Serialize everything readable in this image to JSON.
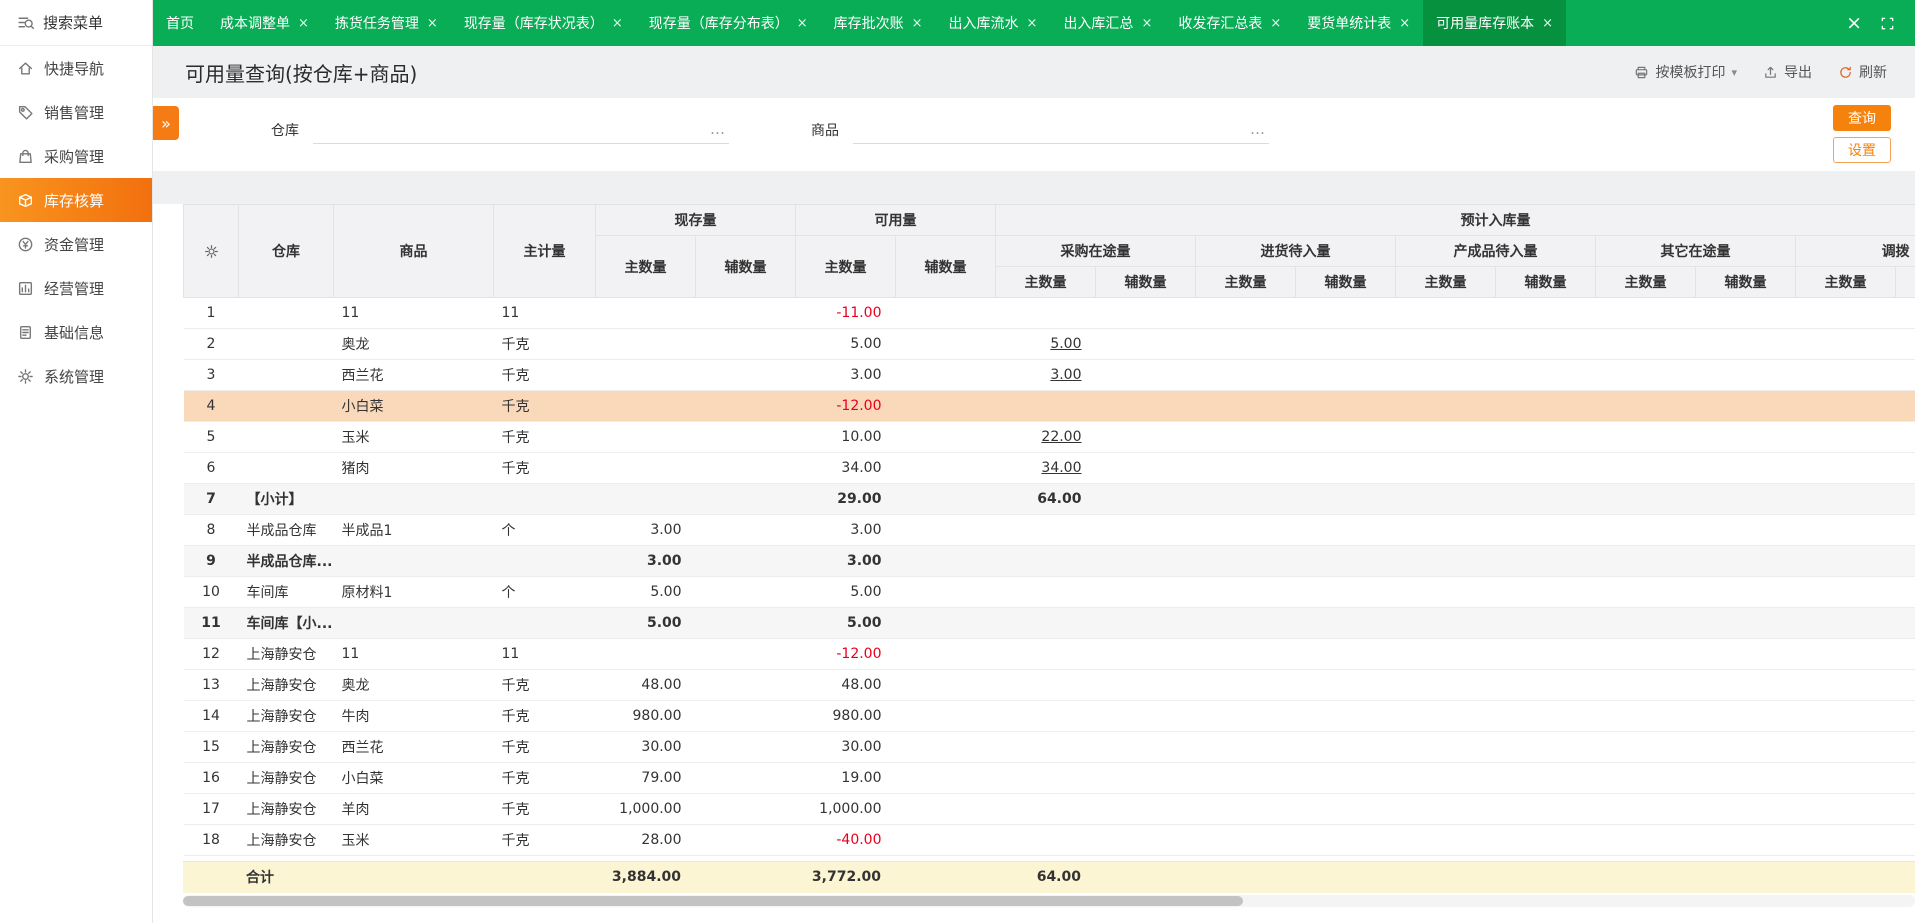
{
  "colors": {
    "topbar_green": "#09ad56",
    "active_tab_green": "#06913f",
    "accent_orange": "#f5820d",
    "negative_red": "#e8001e",
    "selected_row": "#fad8ba",
    "total_row_bg": "#fcf5d3"
  },
  "topbar": {
    "close_icon": "×",
    "tabs": [
      {
        "label": "首页",
        "closable": false,
        "active": false
      },
      {
        "label": "成本调整单",
        "closable": true,
        "active": false
      },
      {
        "label": "拣货任务管理",
        "closable": true,
        "active": false
      },
      {
        "label": "现存量（库存状况表）",
        "closable": true,
        "active": false
      },
      {
        "label": "现存量（库存分布表）",
        "closable": true,
        "active": false
      },
      {
        "label": "库存批次账",
        "closable": true,
        "active": false
      },
      {
        "label": "出入库流水",
        "closable": true,
        "active": false
      },
      {
        "label": "出入库汇总",
        "closable": true,
        "active": false
      },
      {
        "label": "收发存汇总表",
        "closable": true,
        "active": false
      },
      {
        "label": "要货单统计表",
        "closable": true,
        "active": false
      },
      {
        "label": "可用量库存账本",
        "closable": true,
        "active": true
      }
    ]
  },
  "sidebar": {
    "search_label": "搜索菜单",
    "items": [
      {
        "label": "快捷导航",
        "icon": "home-icon",
        "active": false
      },
      {
        "label": "销售管理",
        "icon": "sales-icon",
        "active": false
      },
      {
        "label": "采购管理",
        "icon": "purchase-icon",
        "active": false
      },
      {
        "label": "库存核算",
        "icon": "inventory-icon",
        "active": true
      },
      {
        "label": "资金管理",
        "icon": "funds-icon",
        "active": false
      },
      {
        "label": "经营管理",
        "icon": "business-icon",
        "active": false
      },
      {
        "label": "基础信息",
        "icon": "baseinfo-icon",
        "active": false
      },
      {
        "label": "系统管理",
        "icon": "system-icon",
        "active": false
      }
    ]
  },
  "page": {
    "title": "可用量查询(按仓库+商品)",
    "actions": {
      "print": "按模板打印",
      "export": "导出",
      "refresh": "刷新"
    }
  },
  "filters": {
    "collapse_icon": "»",
    "warehouse_label": "仓库",
    "product_label": "商品",
    "ellipsis": "…",
    "query": "查询",
    "settings": "设置"
  },
  "table": {
    "head": {
      "warehouse": "仓库",
      "product": "商品",
      "unit": "主计量",
      "onhand": "现存量",
      "available": "可用量",
      "forecast": "预计入库量",
      "po": "采购在途量",
      "incoming": "进货待入量",
      "finished": "产成品待入量",
      "other": "其它在途量",
      "transfer": "调拨",
      "main": "主数量",
      "aux": "辅数量"
    },
    "rows": [
      {
        "num": "1",
        "warehouse": "",
        "product": "11",
        "unit": "11",
        "onhand": "",
        "avail": "-11.00",
        "po": ""
      },
      {
        "num": "2",
        "warehouse": "",
        "product": "奥龙",
        "unit": "千克",
        "onhand": "",
        "avail": "5.00",
        "po": "5.00",
        "po_link": true
      },
      {
        "num": "3",
        "warehouse": "",
        "product": "西兰花",
        "unit": "千克",
        "onhand": "",
        "avail": "3.00",
        "po": "3.00",
        "po_link": true
      },
      {
        "num": "4",
        "warehouse": "",
        "product": "小白菜",
        "unit": "千克",
        "onhand": "",
        "avail": "-12.00",
        "po": "",
        "selected": true
      },
      {
        "num": "5",
        "warehouse": "",
        "product": "玉米",
        "unit": "千克",
        "onhand": "",
        "avail": "10.00",
        "po": "22.00",
        "po_link": true
      },
      {
        "num": "6",
        "warehouse": "",
        "product": "猪肉",
        "unit": "千克",
        "onhand": "",
        "avail": "34.00",
        "po": "34.00",
        "po_link": true
      },
      {
        "num": "7",
        "warehouse": "【小计】",
        "product": "",
        "unit": "",
        "onhand": "",
        "avail": "29.00",
        "po": "64.00",
        "subtotal": true
      },
      {
        "num": "8",
        "warehouse": "半成品仓库",
        "product": "半成品1",
        "unit": "个",
        "onhand": "3.00",
        "avail": "3.00",
        "po": ""
      },
      {
        "num": "9",
        "warehouse": "半成品仓库...",
        "product": "",
        "unit": "",
        "onhand": "3.00",
        "avail": "3.00",
        "po": "",
        "subtotal": true
      },
      {
        "num": "10",
        "warehouse": "车间库",
        "product": "原材料1",
        "unit": "个",
        "onhand": "5.00",
        "avail": "5.00",
        "po": ""
      },
      {
        "num": "11",
        "warehouse": "车间库【小...",
        "product": "",
        "unit": "",
        "onhand": "5.00",
        "avail": "5.00",
        "po": "",
        "subtotal": true
      },
      {
        "num": "12",
        "warehouse": "上海静安仓",
        "product": "11",
        "unit": "11",
        "onhand": "",
        "avail": "-12.00",
        "po": ""
      },
      {
        "num": "13",
        "warehouse": "上海静安仓",
        "product": "奥龙",
        "unit": "千克",
        "onhand": "48.00",
        "avail": "48.00",
        "po": ""
      },
      {
        "num": "14",
        "warehouse": "上海静安仓",
        "product": "牛肉",
        "unit": "千克",
        "onhand": "980.00",
        "avail": "980.00",
        "po": ""
      },
      {
        "num": "15",
        "warehouse": "上海静安仓",
        "product": "西兰花",
        "unit": "千克",
        "onhand": "30.00",
        "avail": "30.00",
        "po": ""
      },
      {
        "num": "16",
        "warehouse": "上海静安仓",
        "product": "小白菜",
        "unit": "千克",
        "onhand": "79.00",
        "avail": "19.00",
        "po": ""
      },
      {
        "num": "17",
        "warehouse": "上海静安仓",
        "product": "羊肉",
        "unit": "千克",
        "onhand": "1,000.00",
        "avail": "1,000.00",
        "po": ""
      },
      {
        "num": "18",
        "warehouse": "上海静安仓",
        "product": "玉米",
        "unit": "千克",
        "onhand": "28.00",
        "avail": "-40.00",
        "po": ""
      }
    ],
    "total": {
      "label": "合计",
      "onhand": "3,884.00",
      "avail": "3,772.00",
      "po": "64.00"
    }
  }
}
